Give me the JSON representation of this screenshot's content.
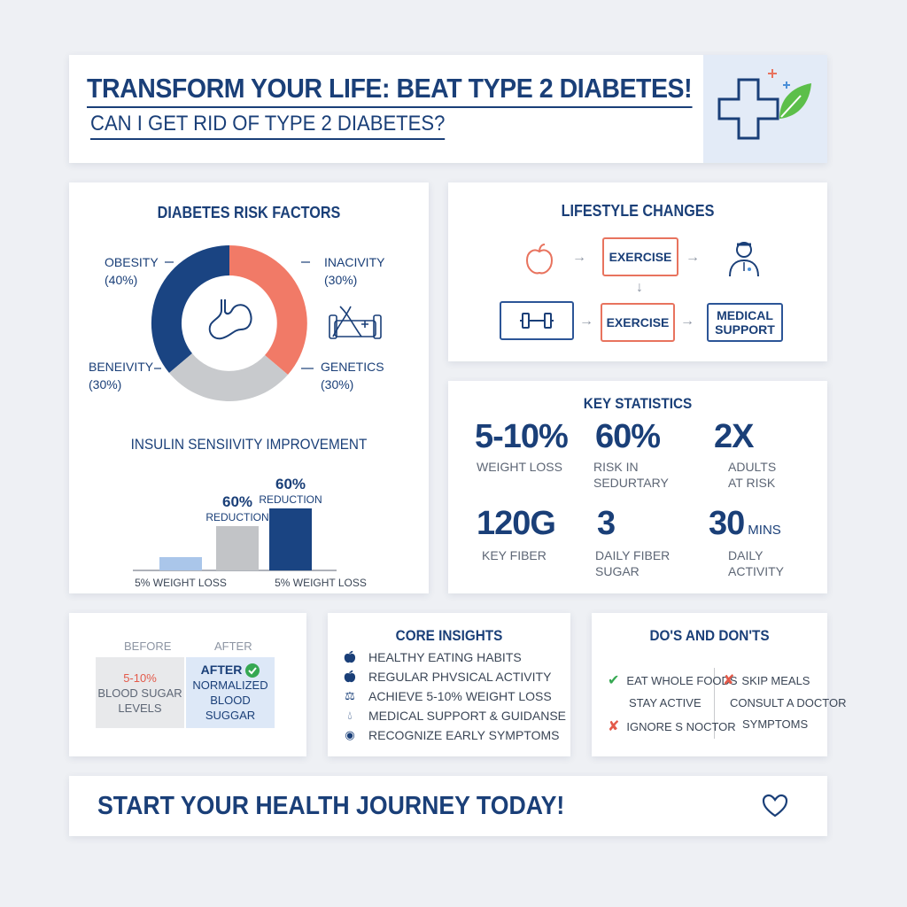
{
  "header": {
    "title": "TRANSFORM YOUR LIFE: BEAT TYPE 2 DIABETES!",
    "subtitle": "CAN I GET RID OF TYPE 2 DIABETES?",
    "logo_icon": "medical-cross-leaf-icon"
  },
  "risk_factors": {
    "title": "DIABETES RISK FACTORS",
    "center_icon": "stomach-icon",
    "side_icon": "dna-sofa-icon",
    "segments": [
      {
        "name": "OBESITY",
        "value_label": "(40%)",
        "value": 40,
        "color": "#1a4482"
      },
      {
        "name": "INACIVITY",
        "value_label": "(30%)",
        "value": 30,
        "color": "#f17a67"
      },
      {
        "name": "GENETICS",
        "value_label": "(30%)",
        "value": 30,
        "color": "#c8cacd"
      },
      {
        "name": "BENEIVITY",
        "value_label": "(30%)",
        "value": 30,
        "color": "#c8cacd"
      }
    ]
  },
  "chart_data": {
    "type": "bar",
    "title": "INSULIN SENSIIVITY IMPROVEMENT",
    "categories": [
      "",
      "5% WEIGHT LOSS",
      "5% WEIGHT LOSS"
    ],
    "x_tick_labels": [
      "5% WEIGHT LOSS",
      "5% WEIGHT LOSS"
    ],
    "values": [
      15,
      50,
      70
    ],
    "bar_colors": [
      "#aac6ea",
      "#c2c4c7",
      "#1a4482"
    ],
    "data_labels": [
      {
        "value": "",
        "text": ""
      },
      {
        "value": "60%",
        "text": "REDUCTION"
      },
      {
        "value": "60%",
        "text": "REDUCTION"
      }
    ],
    "ylim": [
      0,
      100
    ],
    "xlabel": "",
    "ylabel": ""
  },
  "lifestyle": {
    "title": "LIFESTYLE CHANGES",
    "apple_icon": "apple-icon",
    "dumbbell_icon": "dumbbell-icon",
    "doctor_icon": "doctor-icon",
    "box_top": "EXERCISE",
    "box_mid": "EXERCISE",
    "box_right_line1": "MEDICAL",
    "box_right_line2": "SUPPORT"
  },
  "stats": {
    "title": "KEY STATISTICS",
    "items": [
      {
        "value": "5-10%",
        "unit": "",
        "label1": "WEIGHT LOSS",
        "label2": ""
      },
      {
        "value": "60%",
        "unit": "",
        "label1": "RISK IN",
        "label2": "SEDURTARY"
      },
      {
        "value": "2X",
        "unit": "",
        "label1": "ADULTS",
        "label2": "AT RISK"
      },
      {
        "value": "120G",
        "unit": "",
        "label1": "KEY FIBER",
        "label2": ""
      },
      {
        "value": "3",
        "unit": "",
        "label1": "DAILY FIBER",
        "label2": "SUGAR"
      },
      {
        "value": "30",
        "unit": "MINS",
        "label1": "DAILY",
        "label2": "ACTIVITY"
      }
    ]
  },
  "before_after": {
    "before_label": "BEFORE",
    "after_label": "AFTER",
    "before_line1": "5-10%",
    "before_line2": "BLOOD SUGAR",
    "before_line3": "LEVELS",
    "after_line1": "AFTER",
    "after_line2": "NORMALIZED",
    "after_line3": "BLOOD SUGGAR",
    "check_icon": "check-circle-icon"
  },
  "insights": {
    "title": "CORE INSIGHTS",
    "items": [
      {
        "icon": "apple-outline-icon",
        "text": "HEALTHY EATING HABITS"
      },
      {
        "icon": "apple-outline-icon",
        "text": "REGULAR PHVSICAL ACTIVITY"
      },
      {
        "icon": "scale-icon",
        "text": "ACHIEVE 5-10% WEIGHT LOSS"
      },
      {
        "icon": "drop-icon",
        "text": "MEDICAL SUPPORT & GUIDANSE"
      },
      {
        "icon": "eye-icon",
        "text": "RECOGNIZE EARLY SYMPTOMS"
      }
    ]
  },
  "dos": {
    "title": "DO'S AND DON'TS",
    "left": [
      {
        "mark": "check",
        "text": "EAT WHOLE FOODS"
      },
      {
        "mark": "none",
        "text": "STAY ACTIVE"
      },
      {
        "mark": "cross",
        "text": "IGNORE S NOCTOR"
      }
    ],
    "right": [
      {
        "mark": "cross",
        "text": "SKIP MEALS"
      },
      {
        "mark": "none",
        "text": "CONSULT A DOCTOR"
      },
      {
        "mark": "none",
        "text": "SYMPTOMS"
      }
    ]
  },
  "footer": {
    "cta": "START YOUR HEALTH JOURNEY TODAY!",
    "heart_icon": "heart-icon"
  }
}
